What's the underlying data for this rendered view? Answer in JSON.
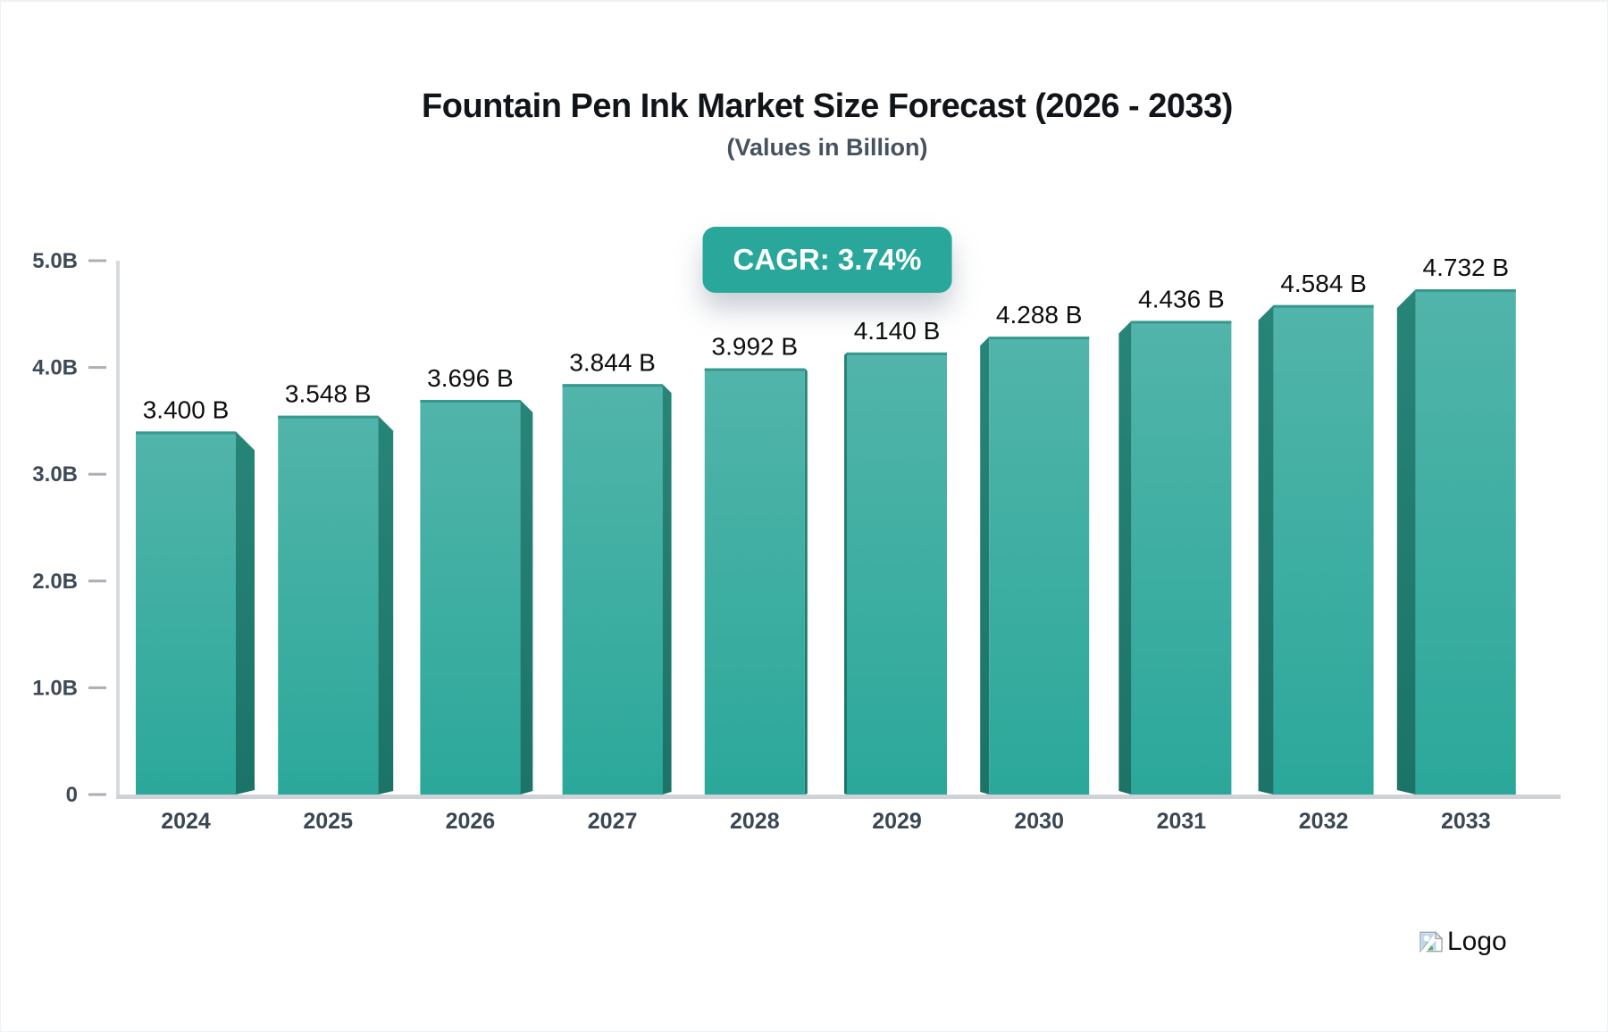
{
  "header": {
    "title": "Fountain Pen Ink Market Size Forecast (2026 - 2033)",
    "subtitle": "(Values in Billion)"
  },
  "badge": {
    "label": "CAGR: 3.74%"
  },
  "logo": {
    "alt_text": "Logo"
  },
  "chart_data": {
    "type": "bar",
    "title": "Fountain Pen Ink Market Size Forecast (2026 - 2033)",
    "subtitle": "(Values in Billion)",
    "annotation": "CAGR: 3.74%",
    "categories": [
      "2024",
      "2025",
      "2026",
      "2027",
      "2028",
      "2029",
      "2030",
      "2031",
      "2032",
      "2033"
    ],
    "values": [
      3.4,
      3.548,
      3.696,
      3.844,
      3.992,
      4.14,
      4.288,
      4.436,
      4.584,
      4.732
    ],
    "bar_labels": [
      "3.400 B",
      "3.548 B",
      "3.696 B",
      "3.844 B",
      "3.992 B",
      "4.140 B",
      "4.288 B",
      "4.436 B",
      "4.584 B",
      "4.732 B"
    ],
    "unit": "B",
    "ylim": [
      0,
      5
    ],
    "yticks": [
      {
        "label": "5.0B",
        "value": 5.0
      },
      {
        "label": "4.0B",
        "value": 4.0
      },
      {
        "label": "3.0B",
        "value": 3.0
      },
      {
        "label": "2.0B",
        "value": 2.0
      },
      {
        "label": "1.0B",
        "value": 1.0
      },
      {
        "label": "0",
        "value": 0.0
      }
    ],
    "grid": false,
    "legend": "none",
    "bar_style": "3d-perspective",
    "colors": {
      "bar_face_top": "#52B4AA",
      "bar_face_bottom": "#2BA89A",
      "bar_side_top": "#278578",
      "bar_side_bottom": "#1C7367",
      "bar_top_edge": "#37988D",
      "badge_bg": "#2AA79B",
      "badge_text": "#FFFFFF",
      "axis_line": "#D8DBDE",
      "baseline": "#CFD3D7",
      "tick_dash": "#A9AFB6",
      "ytick_text": "#3D4A57",
      "xtick_text": "#3B4754",
      "value_text": "#0C0E10",
      "title_text": "#111418",
      "subtitle_text": "#46525F"
    }
  }
}
